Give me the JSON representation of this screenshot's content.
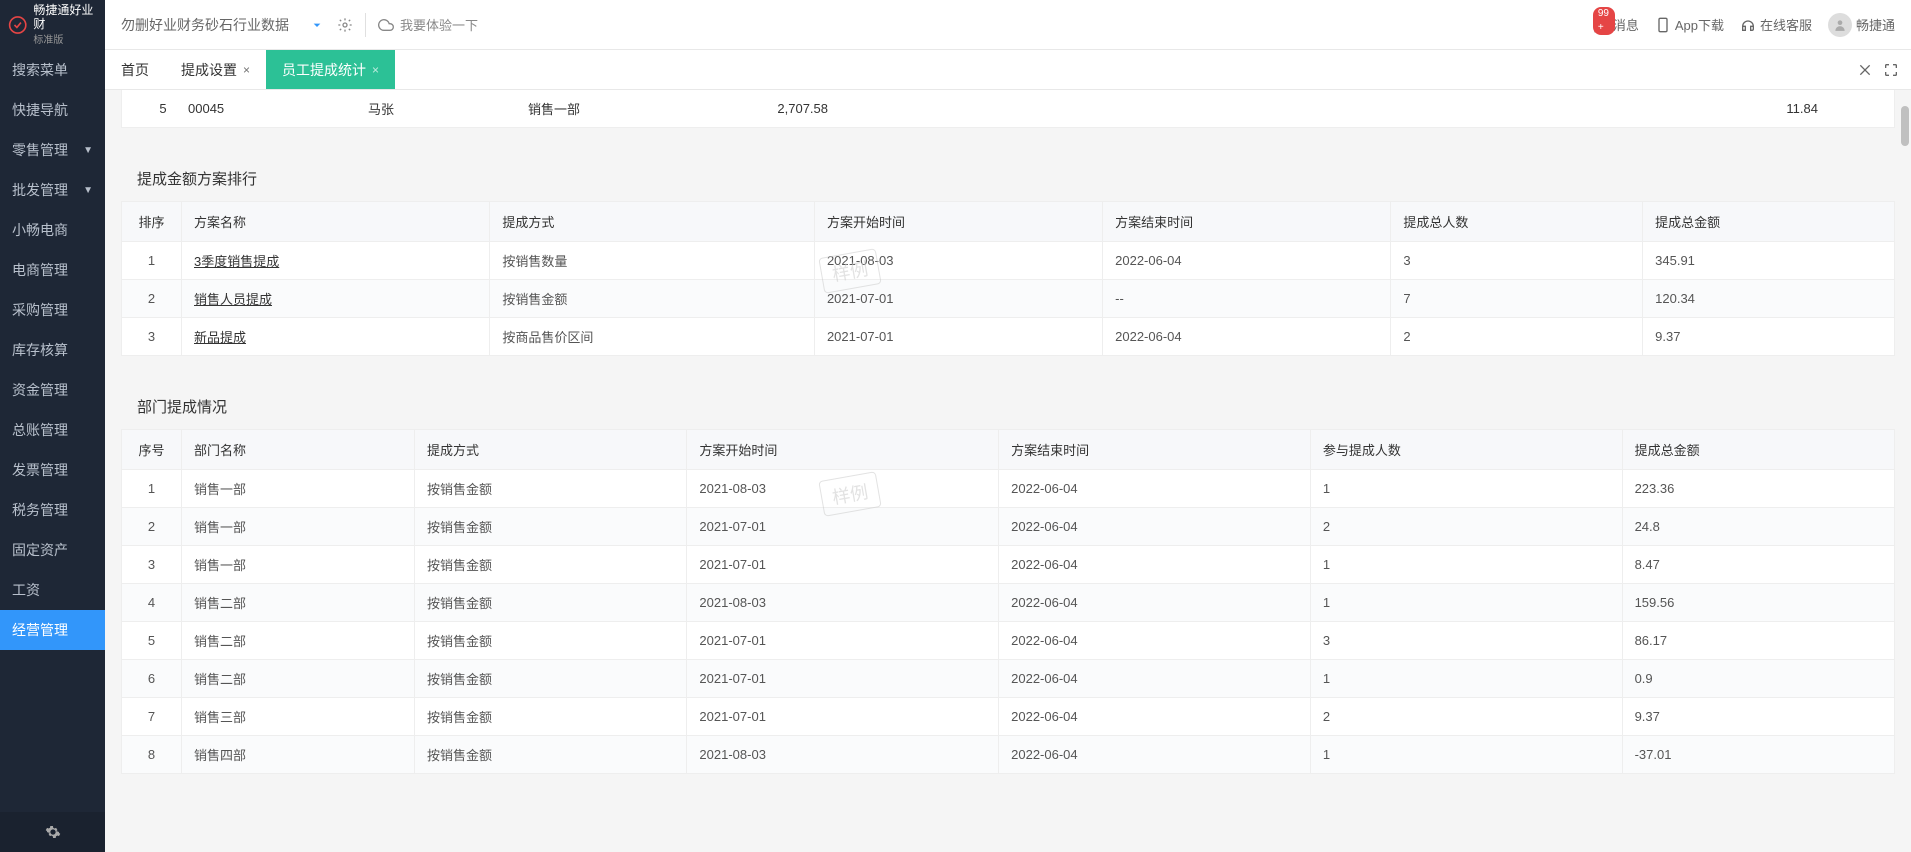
{
  "app": {
    "name": "畅捷通好业财",
    "edition": "标准版"
  },
  "header": {
    "title": "勿删好业财务砂石行业数据",
    "experience": "我要体验一下",
    "msg": "消息",
    "badge": "99 +",
    "download": "App下载",
    "service": "在线客服",
    "user": "畅捷通"
  },
  "sidebar": {
    "items": [
      {
        "label": "搜索菜单",
        "expand": false
      },
      {
        "label": "快捷导航",
        "expand": false
      },
      {
        "label": "零售管理",
        "expand": true
      },
      {
        "label": "批发管理",
        "expand": true
      },
      {
        "label": "小畅电商",
        "expand": false
      },
      {
        "label": "电商管理",
        "expand": false
      },
      {
        "label": "采购管理",
        "expand": false
      },
      {
        "label": "库存核算",
        "expand": false
      },
      {
        "label": "资金管理",
        "expand": false
      },
      {
        "label": "总账管理",
        "expand": false
      },
      {
        "label": "发票管理",
        "expand": false
      },
      {
        "label": "税务管理",
        "expand": false
      },
      {
        "label": "固定资产",
        "expand": false
      },
      {
        "label": "工资",
        "expand": false
      },
      {
        "label": "经营管理",
        "expand": false,
        "active": true
      }
    ]
  },
  "tabs": {
    "items": [
      {
        "label": "首页",
        "closable": false
      },
      {
        "label": "提成设置",
        "closable": true
      },
      {
        "label": "员工提成统计",
        "closable": true,
        "active": true
      }
    ]
  },
  "partialRow": {
    "rank": "5",
    "code": "00045",
    "name": "马张",
    "dept": "销售一部",
    "val1": "2,707.58",
    "val2": "11.84"
  },
  "section1": {
    "title": "提成金额方案排行",
    "columns": [
      "排序",
      "方案名称",
      "提成方式",
      "方案开始时间",
      "方案结束时间",
      "提成总人数",
      "提成总金额"
    ],
    "rows": [
      {
        "rank": "1",
        "name": "3季度销售提成",
        "method": "按销售数量",
        "start": "2021-08-03",
        "end": "2022-06-04",
        "people": "3",
        "amount": "345.91"
      },
      {
        "rank": "2",
        "name": "销售人员提成",
        "method": "按销售金额",
        "start": "2021-07-01",
        "end": "--",
        "people": "7",
        "amount": "120.34"
      },
      {
        "rank": "3",
        "name": "新品提成",
        "method": "按商品售价区间",
        "start": "2021-07-01",
        "end": "2022-06-04",
        "people": "2",
        "amount": "9.37"
      }
    ]
  },
  "section2": {
    "title": "部门提成情况",
    "columns": [
      "序号",
      "部门名称",
      "提成方式",
      "方案开始时间",
      "方案结束时间",
      "参与提成人数",
      "提成总金额"
    ],
    "rows": [
      {
        "rank": "1",
        "name": "销售一部",
        "method": "按销售金额",
        "start": "2021-08-03",
        "end": "2022-06-04",
        "people": "1",
        "amount": "223.36"
      },
      {
        "rank": "2",
        "name": "销售一部",
        "method": "按销售金额",
        "start": "2021-07-01",
        "end": "2022-06-04",
        "people": "2",
        "amount": "24.8"
      },
      {
        "rank": "3",
        "name": "销售一部",
        "method": "按销售金额",
        "start": "2021-07-01",
        "end": "2022-06-04",
        "people": "1",
        "amount": "8.47"
      },
      {
        "rank": "4",
        "name": "销售二部",
        "method": "按销售金额",
        "start": "2021-08-03",
        "end": "2022-06-04",
        "people": "1",
        "amount": "159.56"
      },
      {
        "rank": "5",
        "name": "销售二部",
        "method": "按销售金额",
        "start": "2021-07-01",
        "end": "2022-06-04",
        "people": "3",
        "amount": "86.17"
      },
      {
        "rank": "6",
        "name": "销售二部",
        "method": "按销售金额",
        "start": "2021-07-01",
        "end": "2022-06-04",
        "people": "1",
        "amount": "0.9"
      },
      {
        "rank": "7",
        "name": "销售三部",
        "method": "按销售金额",
        "start": "2021-07-01",
        "end": "2022-06-04",
        "people": "2",
        "amount": "9.37"
      },
      {
        "rank": "8",
        "name": "销售四部",
        "method": "按销售金额",
        "start": "2021-08-03",
        "end": "2022-06-04",
        "people": "1",
        "amount": "-37.01"
      }
    ]
  },
  "watermark": "样例",
  "colors": {
    "sidebar_bg": "#1e2736",
    "active_nav": "#3296fa",
    "active_tab": "#2cc196",
    "badge": "#e54545",
    "header_bg": "#ffffff",
    "border": "#e8e8e8",
    "table_header": "#f7f8fa",
    "row_alt": "#fafbfc"
  }
}
